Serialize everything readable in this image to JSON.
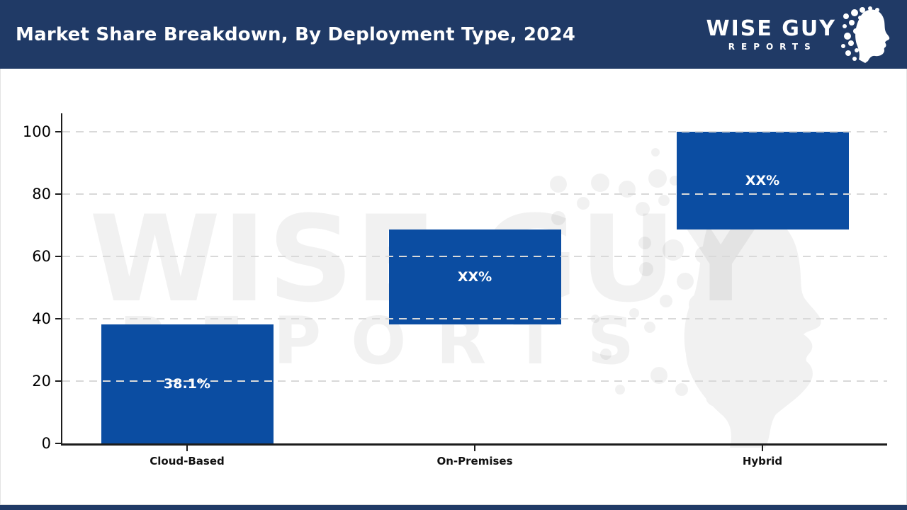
{
  "header": {
    "title": "Market Share Breakdown, By Deployment Type, 2024",
    "logo": {
      "line1": "WISE GUY",
      "line2": "REPORTS"
    },
    "bg_color": "#203a66"
  },
  "watermark": {
    "line1": "WISE GUY",
    "line2": "REPORTS",
    "face_icon": "dotted-head-profile"
  },
  "chart_data": {
    "type": "bar",
    "subtype": "waterfall-floating-bars",
    "title": "Market Share Breakdown, By Deployment Type, 2024",
    "categories": [
      "Cloud-Based",
      "On-Premises",
      "Hybrid"
    ],
    "series": [
      {
        "name": "Market share (%)",
        "segments": [
          {
            "category": "Cloud-Based",
            "start": 0,
            "end": 38.1,
            "label": "38.1%"
          },
          {
            "category": "On-Premises",
            "start": 38.1,
            "end": 68.6,
            "label": "XX%"
          },
          {
            "category": "Hybrid",
            "start": 68.6,
            "end": 100,
            "label": "XX%"
          }
        ]
      }
    ],
    "xlabel": "",
    "ylabel": "",
    "ylim": [
      0,
      106
    ],
    "yticks": [
      0,
      20,
      40,
      60,
      80,
      100
    ],
    "grid": "horizontal-dashed, drawn above bars",
    "legend": "none",
    "colors": {
      "bar": "#0b4da2",
      "bar_label": "#ffffff",
      "grid": "#d9d9d9",
      "axis": "#1c1c1c",
      "tick_label": "#000000",
      "header_bg": "#203a66",
      "watermark": "rgba(0,0,0,0.05)"
    }
  }
}
